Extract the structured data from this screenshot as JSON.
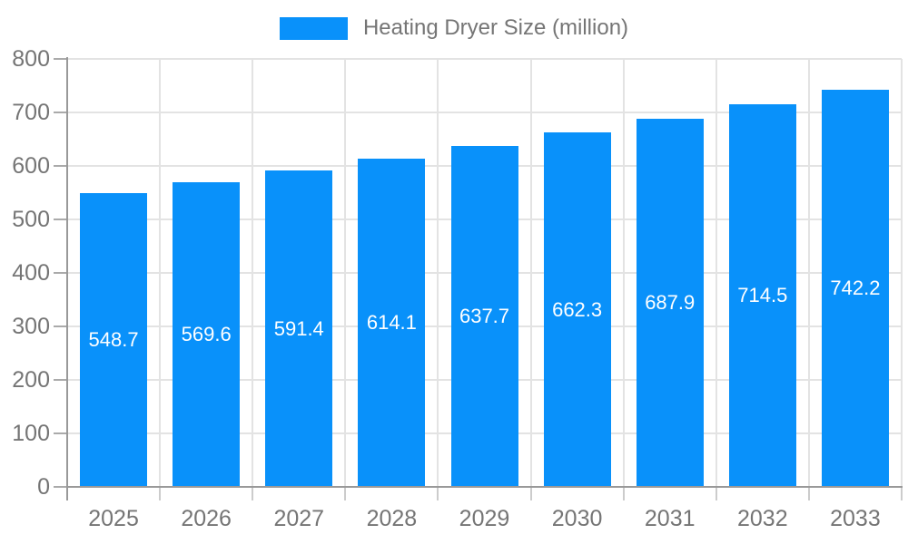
{
  "legend": {
    "label": "Heating Dryer Size (million)"
  },
  "chart_data": {
    "type": "bar",
    "title": "Heating Dryer Size (million)",
    "categories": [
      "2025",
      "2026",
      "2027",
      "2028",
      "2029",
      "2030",
      "2031",
      "2032",
      "2033"
    ],
    "series": [
      {
        "name": "Heating Dryer Size (million)",
        "values": [
          548.7,
          569.6,
          591.4,
          614.1,
          637.7,
          662.3,
          687.9,
          714.5,
          742.2
        ]
      }
    ],
    "value_labels_shown": true,
    "xlabel": "",
    "ylabel": "",
    "ylim": [
      0,
      800
    ],
    "ytick_step": 100,
    "grid": true,
    "legend_position": "top-center",
    "colors": {
      "bar": "#0991fa",
      "bar_label": "#ffffff",
      "axis_line": "#999999",
      "grid_line": "#e3e3e3",
      "y_tick": "#aaaaaa",
      "x_tick": "#cccccc",
      "axis_text": "#757575",
      "legend_text": "#757575"
    }
  }
}
